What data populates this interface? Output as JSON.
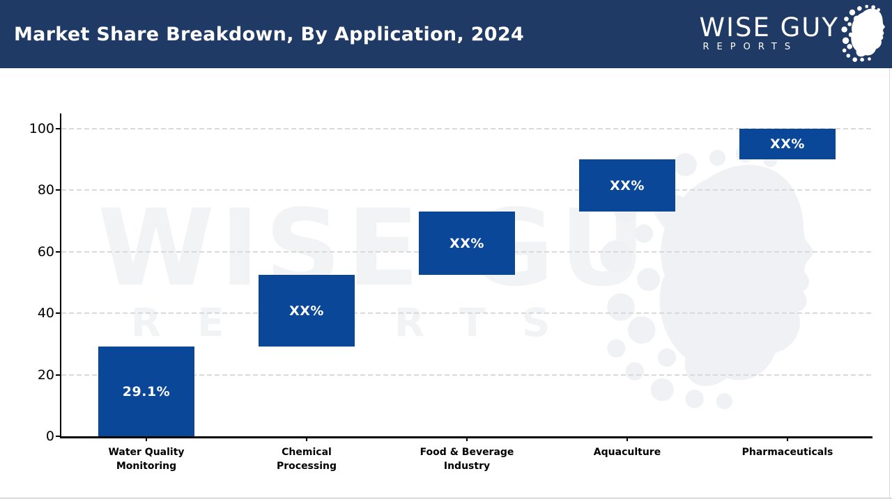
{
  "header": {
    "title": "Market Share Breakdown, By Application, 2024",
    "bg_color": "#1f3a64",
    "logo": {
      "wordmark": "WISE GUY",
      "subtext": "REPORTS"
    }
  },
  "watermark": {
    "wordmark": "WISE GUY",
    "subtext": "REPORTS"
  },
  "chart_data": {
    "type": "bar",
    "subtype": "waterfall",
    "title": "Market Share Breakdown, By Application, 2024",
    "xlabel": "",
    "ylabel": "",
    "ylim": [
      0,
      105
    ],
    "yticks": [
      0,
      20,
      40,
      60,
      80,
      100
    ],
    "grid": "horizontal-dashed",
    "legend": "none",
    "bar_color": "#0b4799",
    "value_label_color": "#ffffff",
    "categories": [
      "Water Quality Monitoring",
      "Chemical Processing",
      "Food & Beverage Industry",
      "Aquaculture",
      "Pharmaceuticals"
    ],
    "category_label_lines": [
      [
        "Water Quality",
        "Monitoring"
      ],
      [
        "Chemical",
        "Processing"
      ],
      [
        "Food & Beverage",
        "Industry"
      ],
      [
        "Aquaculture"
      ],
      [
        "Pharmaceuticals"
      ]
    ],
    "segments": [
      {
        "category": "Water Quality Monitoring",
        "start": 0,
        "end": 29.1,
        "size": 29.1,
        "value_label": "29.1%"
      },
      {
        "category": "Chemical Processing",
        "start": 29.1,
        "end": 52.5,
        "size": 23.4,
        "value_label": "XX%"
      },
      {
        "category": "Food & Beverage Industry",
        "start": 52.5,
        "end": 73.0,
        "size": 20.5,
        "value_label": "XX%"
      },
      {
        "category": "Aquaculture",
        "start": 73.0,
        "end": 90.0,
        "size": 17.0,
        "value_label": "XX%"
      },
      {
        "category": "Pharmaceuticals",
        "start": 90.0,
        "end": 100.0,
        "size": 10.0,
        "value_label": "XX%"
      }
    ]
  }
}
